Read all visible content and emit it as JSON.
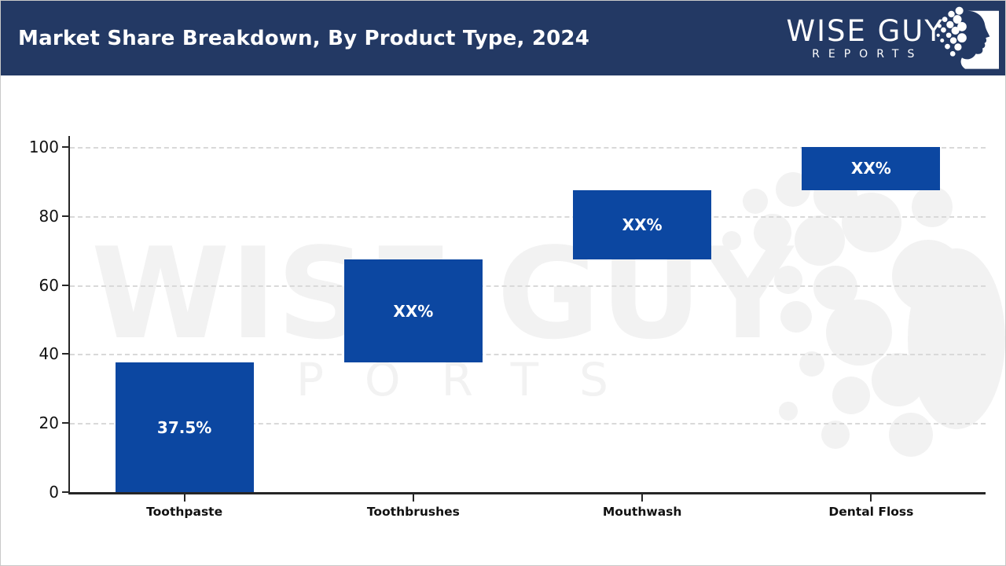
{
  "header": {
    "title": "Market Share Breakdown, By Product Type, 2024",
    "background": "#233964",
    "logo": {
      "wordmark": "WISE GUY",
      "subtitle": "REPORTS"
    }
  },
  "watermark": {
    "line1": "WISE GUY",
    "line2": "REPORTS"
  },
  "chart_data": {
    "type": "bar",
    "subtype": "waterfall",
    "title": "Market Share Breakdown, By Product Type, 2024",
    "categories": [
      "Toothpaste",
      "Toothbrushes",
      "Mouthwash",
      "Dental Floss"
    ],
    "segments": [
      {
        "category": "Toothpaste",
        "start": 0,
        "end": 37.5,
        "delta": 37.5,
        "label": "37.5%"
      },
      {
        "category": "Toothbrushes",
        "start": 37.5,
        "end": 67.5,
        "delta": 30,
        "label": "XX%"
      },
      {
        "category": "Mouthwash",
        "start": 67.5,
        "end": 87.5,
        "delta": 20,
        "label": "XX%"
      },
      {
        "category": "Dental Floss",
        "start": 87.5,
        "end": 100,
        "delta": 12.5,
        "label": "XX%"
      }
    ],
    "xlabel": "",
    "ylabel": "",
    "ylim": [
      0,
      100
    ],
    "yticks": [
      0,
      20,
      40,
      60,
      80,
      100
    ],
    "grid": {
      "horizontal": true,
      "style": "dashed"
    },
    "legend": null,
    "colors": {
      "bar": "#0c47a1",
      "bar_label": "#ffffff",
      "axis": "#262626",
      "grid": "#d9d9d9",
      "tick_label": "#111111",
      "watermark": "#f2f2f2"
    }
  }
}
